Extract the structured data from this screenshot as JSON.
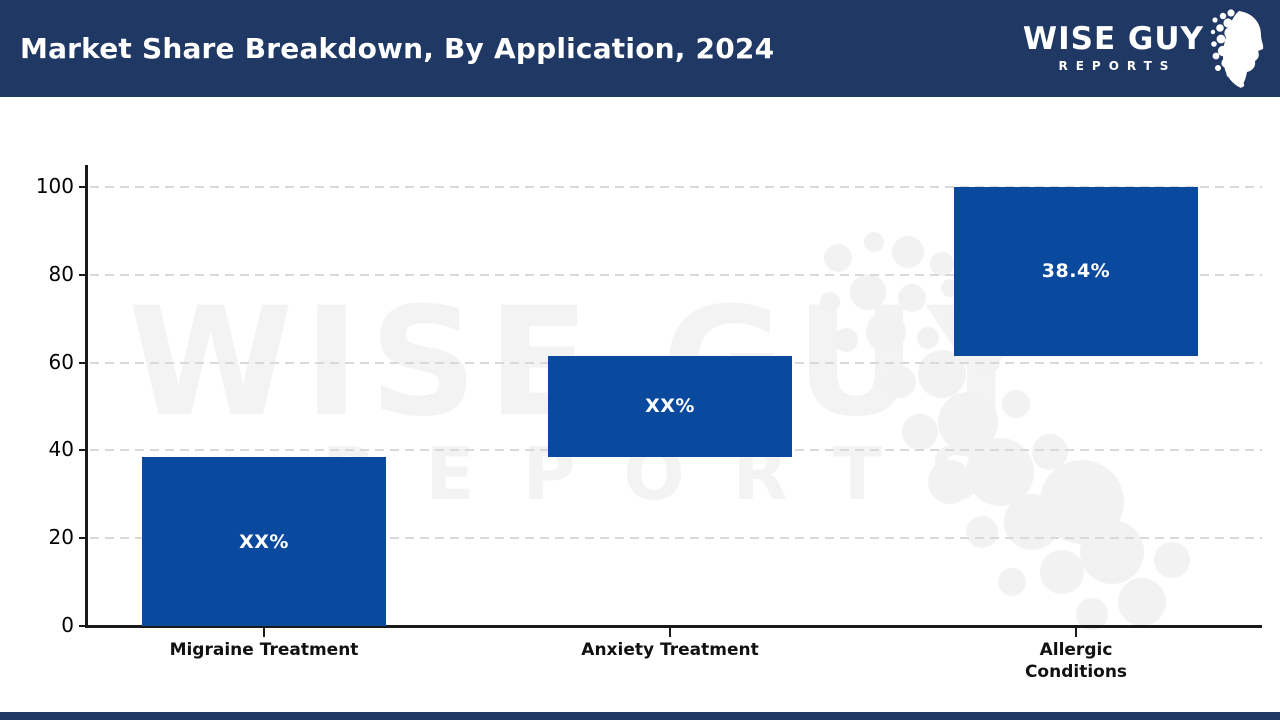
{
  "header": {
    "title": "Market Share Breakdown, By Application, 2024",
    "logo": {
      "brand_line1": "WISE GUY",
      "brand_line2": "REPORTS"
    }
  },
  "watermark": {
    "line1": "WISE GUY",
    "line2": "REPORTS"
  },
  "chart_data": {
    "type": "bar",
    "subtype": "floating-waterfall",
    "title": "Market Share Breakdown, By Application, 2024",
    "categories": [
      "Migraine Treatment",
      "Anxiety Treatment",
      "Allergic\nConditions"
    ],
    "segments": [
      {
        "category": "Migraine Treatment",
        "start": 0,
        "end": 38.4,
        "value": 38.4,
        "label": "XX%"
      },
      {
        "category": "Anxiety Treatment",
        "start": 38.4,
        "end": 61.6,
        "value": 23.2,
        "label": "XX%"
      },
      {
        "category": "Allergic Conditions",
        "start": 61.6,
        "end": 100,
        "value": 38.4,
        "label": "38.4%"
      }
    ],
    "yticks": [
      0,
      20,
      40,
      60,
      80,
      100
    ],
    "ylim": [
      0,
      105
    ],
    "xlabel": "",
    "ylabel": "",
    "legend": "none",
    "grid": "horizontal-dashed"
  },
  "colors": {
    "header_bg": "#203864",
    "footer_bg": "#203864",
    "bar": "#0a4a9e",
    "bar_label": "#ffffff",
    "grid": "#d9d9d9",
    "axis": "#1a1a1a",
    "watermark": "#f3f3f3"
  }
}
